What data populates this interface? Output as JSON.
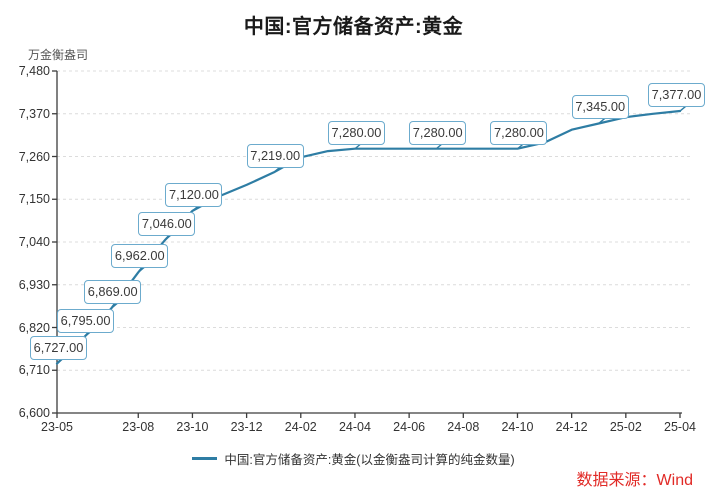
{
  "title": "中国:官方储备资产:黄金",
  "y_axis_unit": "万金衡盎司",
  "legend": {
    "label": "中国:官方储备资产:黄金(以金衡盎司计算的纯金数量)"
  },
  "source": {
    "label": "数据来源：Wind"
  },
  "colors": {
    "line": "#2e7da4",
    "callout_border": "#6cabcd",
    "grid": "#dcdcdc",
    "axis": "#3c3c3c",
    "tick_text": "#333333",
    "title_text": "#1a1a1a",
    "source_text": "#e12a26",
    "background": "#ffffff"
  },
  "chart_data": {
    "type": "line",
    "title": "中国:官方储备资产:黄金",
    "ylabel": "万金衡盎司",
    "series_name": "中国:官方储备资产:黄金(以金衡盎司计算的纯金数量)",
    "x": [
      "23-05",
      "23-06",
      "23-07",
      "23-08",
      "23-09",
      "23-10",
      "23-11",
      "23-12",
      "24-01",
      "24-02",
      "24-03",
      "24-04",
      "24-05",
      "24-06",
      "24-07",
      "24-08",
      "24-09",
      "24-10",
      "24-11",
      "24-12",
      "25-01",
      "25-02",
      "25-03",
      "25-04"
    ],
    "values": [
      6727,
      6795,
      6869,
      6962,
      7046,
      7120,
      7158,
      7187,
      7219,
      7258,
      7274,
      7280,
      7280,
      7280,
      7280,
      7280,
      7280,
      7280,
      7296,
      7329,
      7345,
      7361,
      7370,
      7377
    ],
    "x_tick_labels": [
      "23-05",
      "23-08",
      "23-10",
      "23-12",
      "24-02",
      "24-04",
      "24-06",
      "24-08",
      "24-10",
      "24-12",
      "25-02",
      "25-04"
    ],
    "y_ticks": [
      6600,
      6710,
      6820,
      6930,
      7040,
      7150,
      7260,
      7370,
      7480
    ],
    "y_tick_labels": [
      "6,600",
      "6,710",
      "6,820",
      "6,930",
      "7,040",
      "7,150",
      "7,260",
      "7,370",
      "7,480"
    ],
    "ylim": [
      6600,
      7480
    ],
    "grid": "horizontal-dashed",
    "legend_position": "bottom-center",
    "data_labels": [
      {
        "x": "23-05",
        "label": "6,727.00"
      },
      {
        "x": "23-06",
        "label": "6,795.00"
      },
      {
        "x": "23-07",
        "label": "6,869.00"
      },
      {
        "x": "23-08",
        "label": "6,962.00"
      },
      {
        "x": "23-09",
        "label": "7,046.00"
      },
      {
        "x": "23-10",
        "label": "7,120.00"
      },
      {
        "x": "24-01",
        "label": "7,219.00"
      },
      {
        "x": "24-04",
        "label": "7,280.00"
      },
      {
        "x": "24-07",
        "label": "7,280.00"
      },
      {
        "x": "24-10",
        "label": "7,280.00"
      },
      {
        "x": "25-01",
        "label": "7,345.00"
      },
      {
        "x": "25-04",
        "label": "7,377.00"
      }
    ]
  }
}
